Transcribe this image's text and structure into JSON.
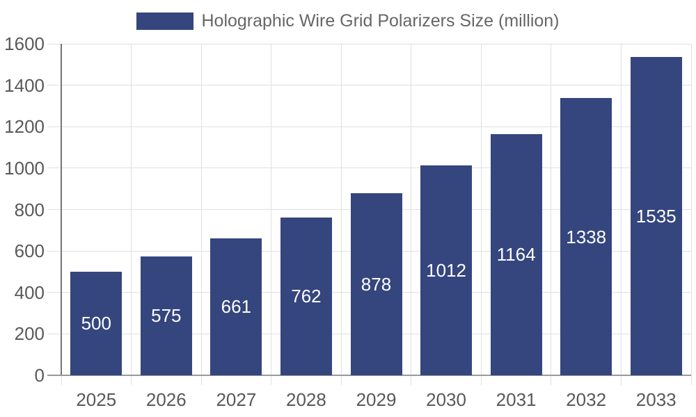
{
  "legend": {
    "label": "Holographic Wire Grid Polarizers Size (million)"
  },
  "chart_data": {
    "type": "bar",
    "title": "Holographic Wire Grid Polarizers Size (million)",
    "series_name": "Holographic Wire Grid Polarizers Size (million)",
    "categories": [
      "2025",
      "2026",
      "2027",
      "2028",
      "2029",
      "2030",
      "2031",
      "2032",
      "2033"
    ],
    "values": [
      500,
      575,
      661,
      762,
      878,
      1012,
      1164,
      1338,
      1535
    ],
    "xlabel": "",
    "ylabel": "",
    "ylim": [
      0,
      1600
    ],
    "ytick_step": 200,
    "ytick_labels": [
      "0",
      "200",
      "400",
      "600",
      "800",
      "1000",
      "1200",
      "1400",
      "1600"
    ],
    "grid": true,
    "legend_position": "top",
    "bar_color": "#35457e",
    "value_label_color": "#ffffff",
    "axis_label_color": "#595959",
    "gridline_color": "#e0e0e0"
  }
}
